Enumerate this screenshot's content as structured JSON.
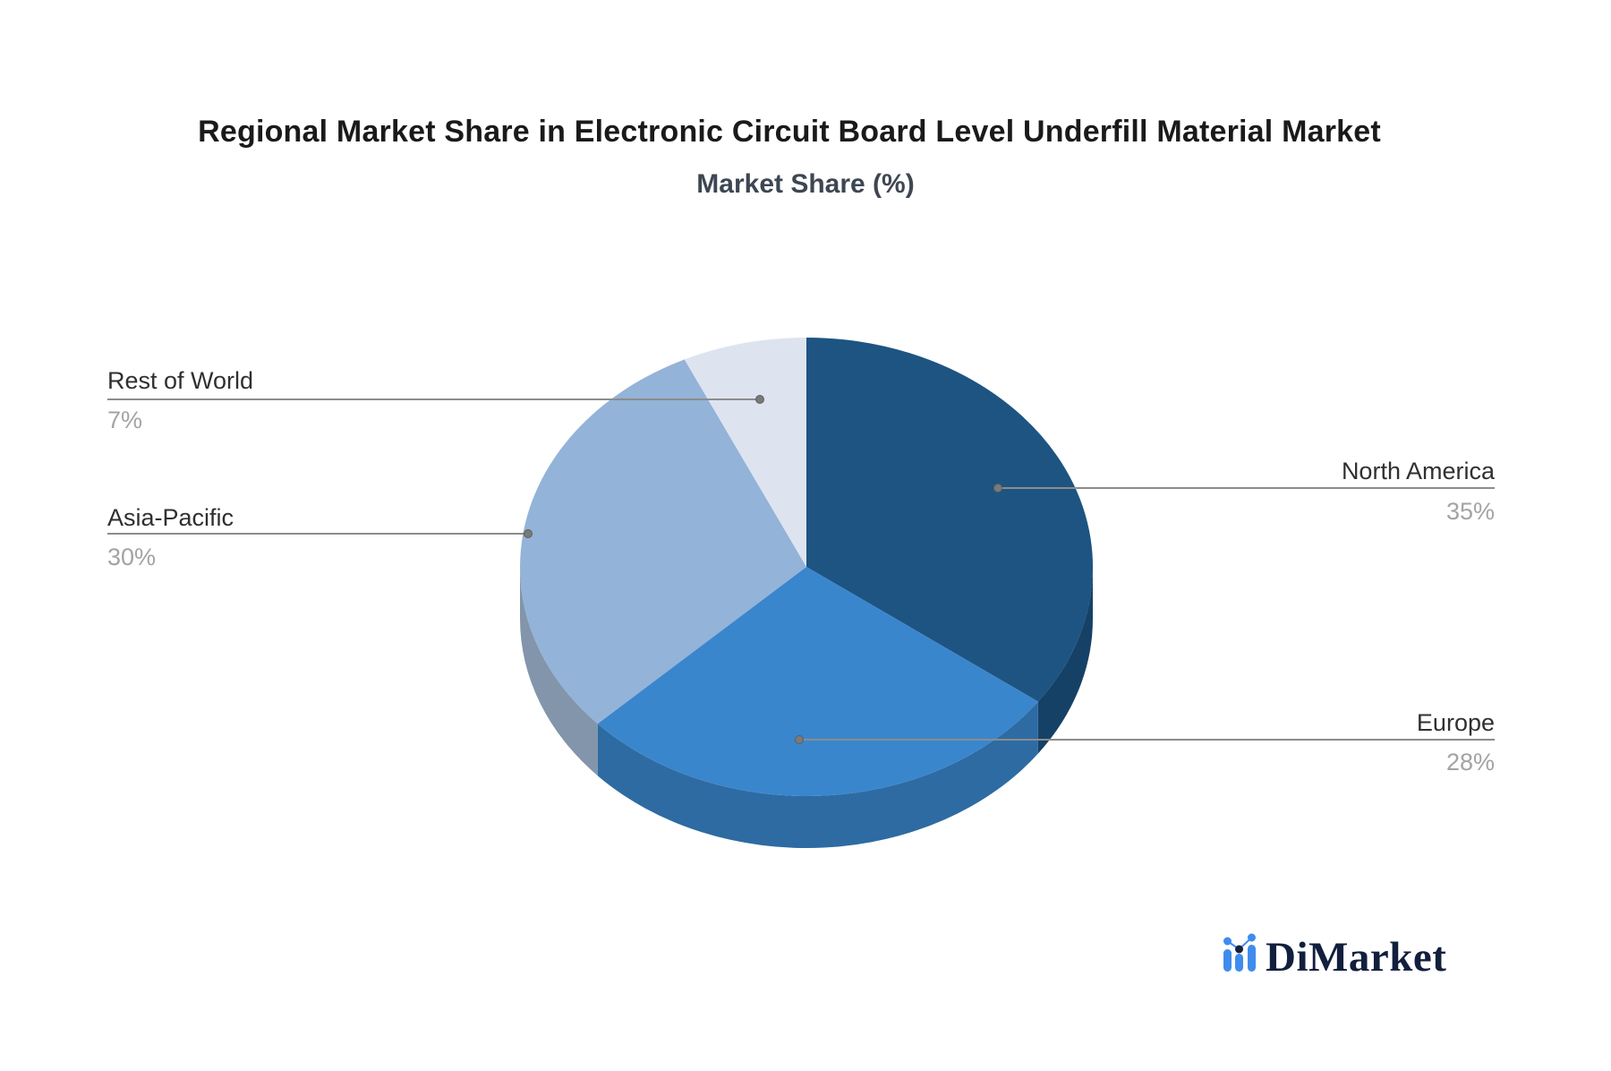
{
  "title": "Regional Market Share in Electronic Circuit Board Level Underfill Material Market",
  "subtitle": "Market Share (%)",
  "brand": {
    "name": "DiMarket"
  },
  "colors": {
    "connector_line": "#8c8c8c",
    "connector_dot": "#6e6e6e",
    "title_text": "#1a1a1a",
    "subtitle_text": "#3e4653",
    "label_text": "#303030",
    "value_text": "#a3a3a3",
    "brand_text": "#121f3d",
    "brand_icon_blue": "#3f8cee",
    "brand_icon_dark": "#15213d",
    "background": "#ffffff"
  },
  "chart_data": {
    "type": "pie",
    "style": "3d",
    "title": "Regional Market Share in Electronic Circuit Board Level Underfill Material Market",
    "subtitle": "Market Share (%)",
    "unit": "%",
    "direction": "clockwise",
    "start_angle_deg": 0,
    "legend": "none",
    "slices": [
      {
        "label": "North America",
        "value": 35,
        "pct_label": "35%",
        "color": "#1d5482",
        "side_color": "#164166",
        "callout_side": "right"
      },
      {
        "label": "Europe",
        "value": 28,
        "pct_label": "28%",
        "color": "#3a86cd",
        "side_color": "#2d6ba2",
        "callout_side": "right"
      },
      {
        "label": "Asia-Pacific",
        "value": 30,
        "pct_label": "30%",
        "color": "#93b3d8",
        "side_color": "#8295ab",
        "callout_side": "left"
      },
      {
        "label": "Rest of World",
        "value": 7,
        "pct_label": "7%",
        "color": "#dde4ef",
        "side_color": "#c3cddc",
        "callout_side": "left"
      }
    ]
  }
}
